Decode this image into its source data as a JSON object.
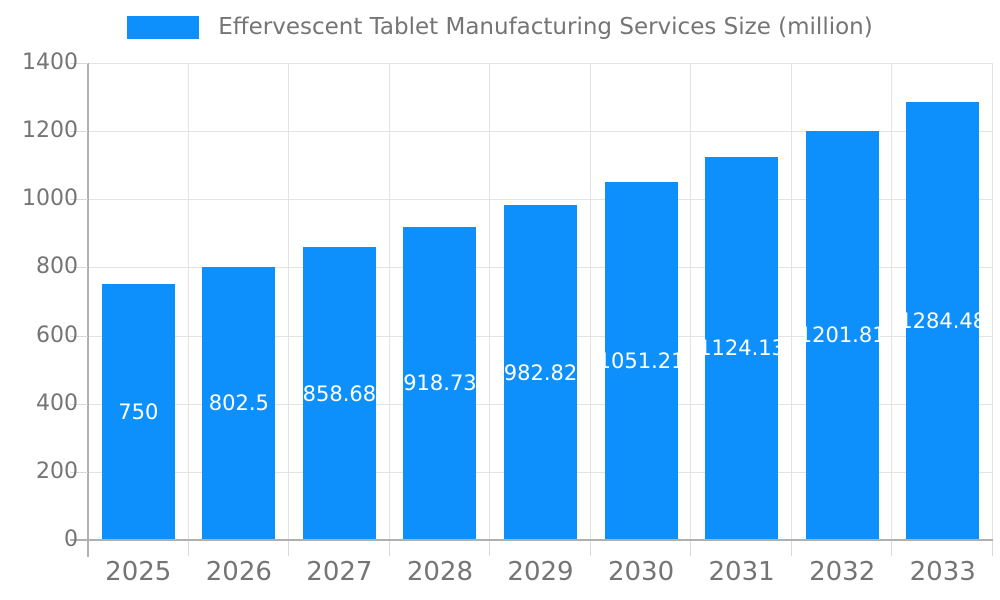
{
  "legend": {
    "label": "Effervescent Tablet Manufacturing Services Size (million)"
  },
  "chart_data": {
    "type": "bar",
    "title": "Effervescent Tablet Manufacturing Services Size (million)",
    "categories": [
      "2025",
      "2026",
      "2027",
      "2028",
      "2029",
      "2030",
      "2031",
      "2032",
      "2033"
    ],
    "values": [
      750,
      802.5,
      858.68,
      918.73,
      982.82,
      1051.21,
      1124.13,
      1201.81,
      1284.48
    ],
    "value_labels": [
      "750",
      "802.5",
      "858.68",
      "918.73",
      "982.82",
      "1051.21",
      "1124.13",
      "1201.81",
      "1284.48"
    ],
    "xlabel": "",
    "ylabel": "",
    "ylim": [
      0,
      1400
    ],
    "yticks": [
      0,
      200,
      400,
      600,
      800,
      1000,
      1200,
      1400
    ],
    "grid": true,
    "legend_position": "top-center",
    "bar_color": "#0d90fb",
    "value_label_color": "#ffffff",
    "axis_text_color": "#757575",
    "grid_color": "#e3e3e3",
    "axis_line_color": "#b0b0b0"
  }
}
